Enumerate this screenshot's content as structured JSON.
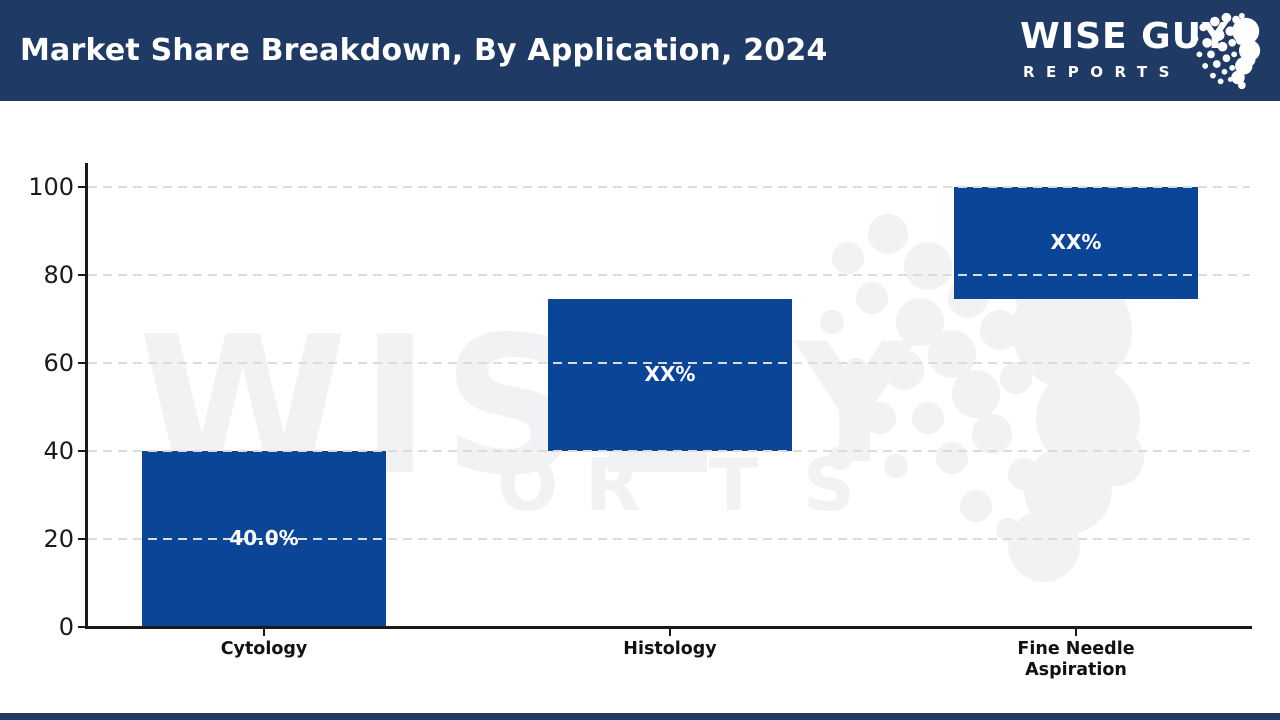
{
  "header": {
    "title": "Market Share Breakdown, By Application, 2024",
    "logo": {
      "brand_top": "WISE GUY",
      "brand_bottom": "REPORTS"
    }
  },
  "watermark": {
    "big_text": "WISE",
    "y_text": "Y",
    "letters": [
      "O",
      "R",
      "T",
      "S"
    ]
  },
  "chart_data": {
    "type": "bar",
    "variant": "stacked-breakdown-waterfall",
    "title": "Market Share Breakdown, By Application, 2024",
    "categories": [
      "Cytology",
      "Histology",
      "Fine Needle\nAspiration"
    ],
    "series": [
      {
        "name": "Market Share",
        "segments": [
          {
            "category": "Cytology",
            "start": 0,
            "end": 40,
            "label": "40.0%"
          },
          {
            "category": "Histology",
            "start": 40,
            "end": 74.5,
            "label": "XX%"
          },
          {
            "category": "Fine Needle Aspiration",
            "start": 74.5,
            "end": 100,
            "label": "XX%"
          }
        ]
      }
    ],
    "xlabel": "",
    "ylabel": "",
    "ylim": [
      0,
      100
    ],
    "yticks": [
      0,
      20,
      40,
      60,
      80,
      100
    ],
    "grid": "horizontal-dashed",
    "legend": "none"
  },
  "colors": {
    "header_bg": "#203a66",
    "footer_bg": "#203a66",
    "bar": "#0b4598",
    "bar_label": "#ffffff",
    "grid": "#dcdcdc",
    "axis": "#1a1a1a",
    "watermark": "#f2f2f4"
  }
}
